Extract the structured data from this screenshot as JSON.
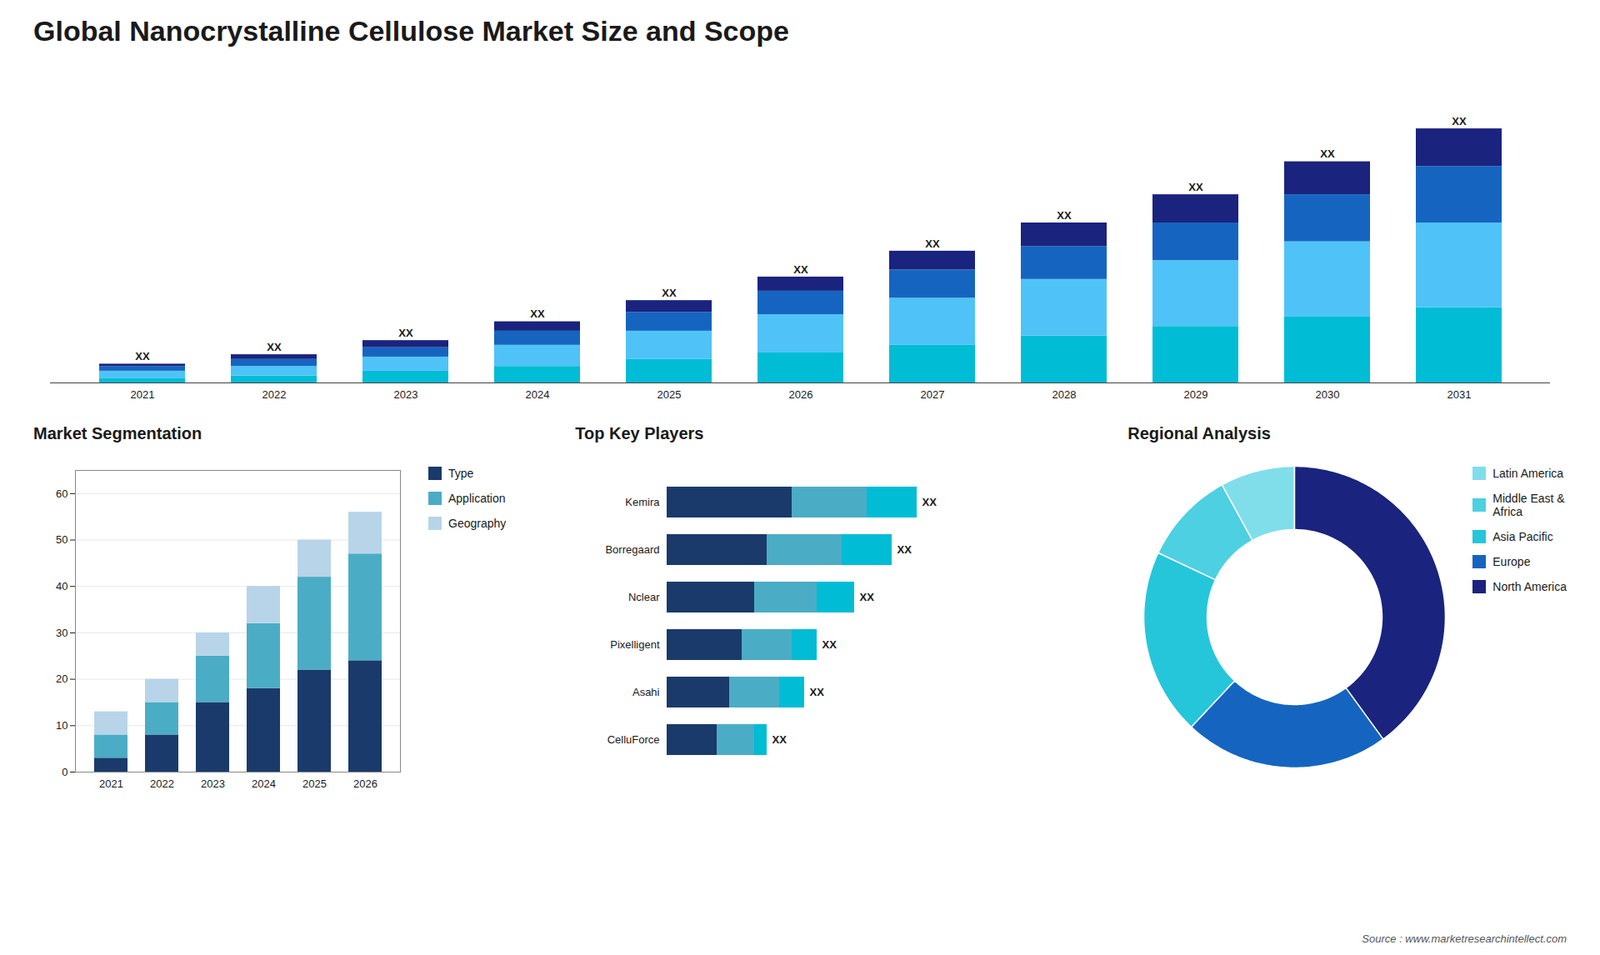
{
  "title": "Global Nanocrystalline Cellulose Market Size and Scope",
  "annotations": [
    "Source : www.marketresearchintellect.com"
  ],
  "chart_data": [
    {
      "type": "bar",
      "stacked": true,
      "categories": [
        "2021",
        "2022",
        "2023",
        "2024",
        "2025",
        "2026",
        "2027",
        "2028",
        "2029",
        "2030",
        "2031"
      ],
      "series": [
        {
          "color": "#00bcd4",
          "values": [
            1,
            1.5,
            2.5,
            3.5,
            5,
            6.5,
            8,
            10,
            12,
            14,
            16
          ]
        },
        {
          "color": "#4fc3f7",
          "values": [
            1.5,
            2,
            3,
            4.5,
            6,
            8,
            10,
            12,
            14,
            16,
            18
          ]
        },
        {
          "color": "#1565c0",
          "values": [
            1,
            1.5,
            2,
            3,
            4,
            5,
            6,
            7,
            8,
            10,
            12
          ]
        },
        {
          "color": "#1a237e",
          "values": [
            0.5,
            1,
            1.5,
            2,
            2.5,
            3,
            4,
            5,
            6,
            7,
            8
          ]
        }
      ],
      "ylim": [
        0,
        65.88
      ],
      "tick_labels": "x",
      "annotations": [
        "XX",
        "XX",
        "XX",
        "XX",
        "XX",
        "XX",
        "XX",
        "XX",
        "XX",
        "XX",
        "XX"
      ]
    },
    {
      "type": "bar",
      "stacked": true,
      "title": "Market Segmentation",
      "categories": [
        "2021",
        "2022",
        "2023",
        "2024",
        "2025",
        "2026"
      ],
      "series": [
        {
          "name": "Type",
          "color": "#1a3a6b",
          "values": [
            3,
            8,
            15,
            18,
            22,
            24
          ]
        },
        {
          "name": "Application",
          "color": "#4bacc6",
          "values": [
            5,
            7,
            10,
            14,
            20,
            23
          ]
        },
        {
          "name": "Geography",
          "color": "#b8d4e8",
          "values": [
            5,
            5,
            5,
            8,
            8,
            9
          ]
        }
      ],
      "ylim": [
        0,
        65
      ],
      "yticks": [
        0,
        10,
        20,
        30,
        40,
        50,
        60
      ],
      "grid": true,
      "legend": "right"
    },
    {
      "type": "bar",
      "stacked": true,
      "orientation": "horizontal",
      "title": "Top Key Players",
      "categories": [
        "Kemira",
        "Borregaard",
        "Nclear",
        "Pixelligent",
        "Asahi",
        "CelluForce"
      ],
      "series": [
        {
          "color": "#1a3a6b",
          "values": [
            5,
            4,
            3.5,
            3,
            2.5,
            2
          ]
        },
        {
          "color": "#4bacc6",
          "values": [
            3,
            3,
            2.5,
            2,
            2,
            1.5
          ]
        },
        {
          "color": "#00bcd4",
          "values": [
            2,
            2,
            1.5,
            1,
            1,
            0.5
          ]
        }
      ],
      "xlim": [
        0,
        14
      ],
      "tick_labels": "y",
      "annotations": [
        "XX",
        "XX",
        "XX",
        "XX",
        "XX",
        "XX"
      ]
    },
    {
      "type": "pie",
      "title": "Regional Analysis",
      "categories": [
        "Latin America",
        "Middle East &\nAfrica",
        "Asia Pacific",
        "Europe",
        "North America"
      ],
      "values": [
        8,
        10,
        20,
        22,
        40
      ],
      "colors": [
        "#80deea",
        "#4dd0e1",
        "#26c6da",
        "#1565c0",
        "#1a237e"
      ],
      "legend": "right"
    }
  ]
}
